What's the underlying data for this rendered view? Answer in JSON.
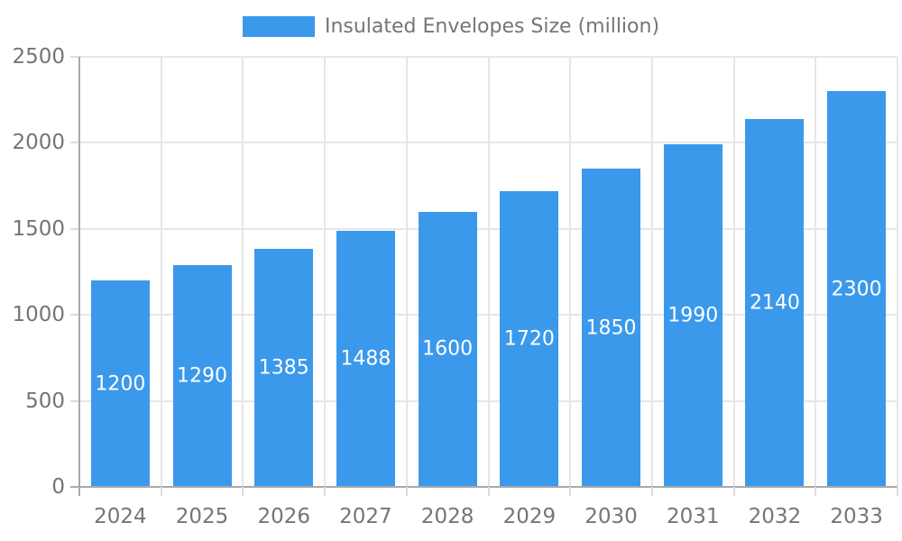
{
  "chart_data": {
    "type": "bar",
    "title": "",
    "legend_label": "Insulated Envelopes Size (million)",
    "legend_position": "top",
    "categories": [
      "2024",
      "2025",
      "2026",
      "2027",
      "2028",
      "2029",
      "2030",
      "2031",
      "2032",
      "2033"
    ],
    "values": [
      1200,
      1290,
      1385,
      1488,
      1600,
      1720,
      1850,
      1990,
      2140,
      2300
    ],
    "xlabel": "",
    "ylabel": "",
    "ylim": [
      0,
      2500
    ],
    "yticks": [
      0,
      500,
      1000,
      1500,
      2000,
      2500
    ],
    "grid": true,
    "colors": {
      "bar": "#3B99EC",
      "bar_label": "#FFFFFF",
      "axis_text": "#757575",
      "grid_line": "#E6E6E6",
      "tick": "#DCDCDC",
      "axis_line": "#A9A9A9",
      "background": "#FFFFFF"
    }
  }
}
